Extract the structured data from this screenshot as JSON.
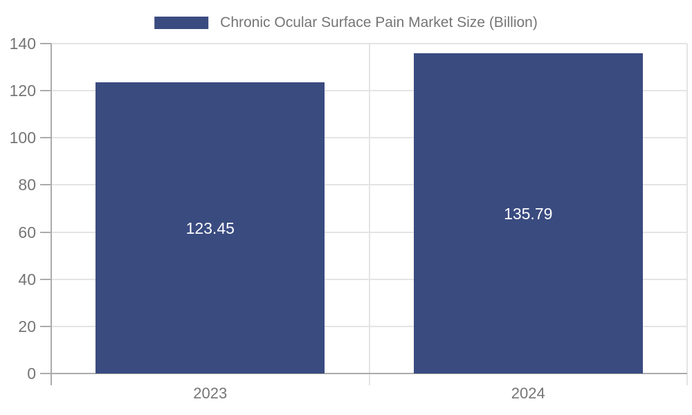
{
  "chart_data": {
    "type": "bar",
    "title": "Chronic Ocular Surface Pain Market Size (Billion)",
    "categories": [
      "2023",
      "2024"
    ],
    "series": [
      {
        "name": "Chronic Ocular Surface Pain Market Size (Billion)",
        "values": [
          123.45,
          135.79
        ]
      }
    ],
    "value_labels": [
      "123.45",
      "135.79"
    ],
    "value_label_position": "inside-center",
    "xlabel": "",
    "ylabel": "",
    "ylim": [
      0,
      140
    ],
    "ytick_interval": 20,
    "yticks": [
      0,
      20,
      40,
      60,
      80,
      100,
      120,
      140
    ],
    "grid": true,
    "legend_position": "top-center"
  },
  "colors": {
    "bar": "#3A4B80",
    "grid": "#E4E4E4",
    "axis": "#ABABAB",
    "text_gray": "#757575",
    "value_label": "#FFFFFF",
    "bg": "#FFFFFF"
  }
}
